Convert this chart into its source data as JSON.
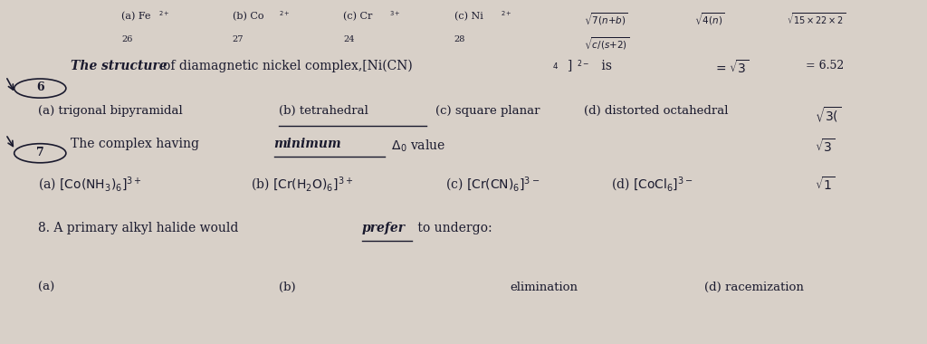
{
  "bg_color": "#d8d0c8",
  "title_q6": "6. The structure",
  "title_q6b": "of diamagnetic nickel complex,[Ni(CN)₄]²⁻ is",
  "q6_options": [
    "(a) trigonal bipyramidal",
    "(b) tetrahedral",
    "(c) square planar",
    "(d) distorted octahedral"
  ],
  "title_q7": "7. The complex having ",
  "title_q7b": "minimum",
  "title_q7c": " Δ₀ value",
  "q7_options_a": "(a) [Co(NH₃)₆]³⁺",
  "q7_options_b": "(b) [Cr(H₂O)₆]³⁺",
  "q7_options_c": "(c) [Cr(CN)₆]³⁻",
  "q7_options_d": "(d) [CoCl₆]³⁻",
  "title_q8": "8. A primary alkyl halide would ",
  "title_q8b": "prefer",
  "title_q8c": " to undergo:",
  "top_text": "(a) Fe²⁺    (b) Co²⁺    (c) Cr³⁺    (c) Ni²⁺",
  "top_nums": "26          27           24           28",
  "text_color": "#1a1a2e",
  "underline_color": "#1a1a2e"
}
